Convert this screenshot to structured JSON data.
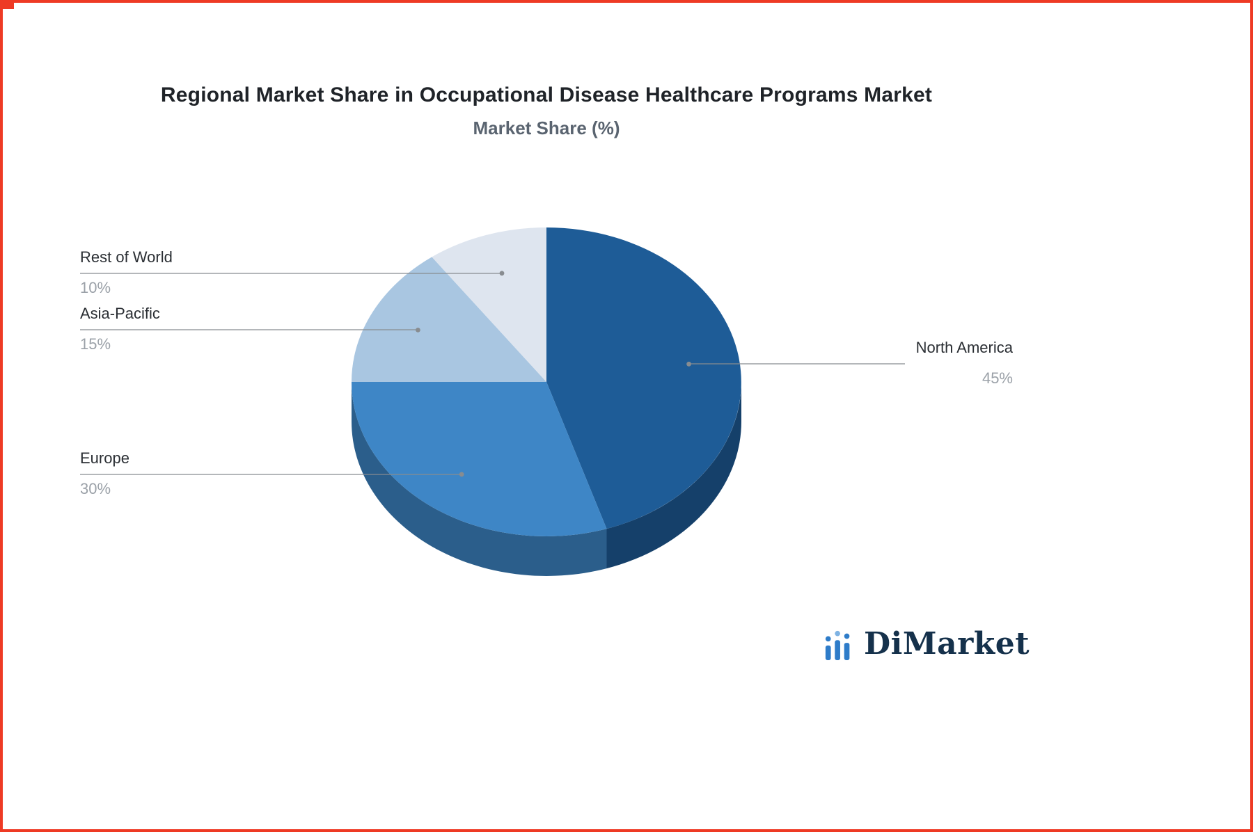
{
  "page": {
    "title": "Regional Market Share in Occupational Disease Healthcare Programs Market",
    "subtitle": "Market Share (%)"
  },
  "brand": {
    "name": "DiMarket",
    "icon": "bar-chart-logo-icon",
    "accent_color": "#2E7CC9",
    "text_color": "#15314B"
  },
  "frame_color": "#EE3A24",
  "chart_data": {
    "type": "pie",
    "title": "Regional Market Share in Occupational Disease Healthcare Programs Market",
    "subtitle": "Market Share (%)",
    "unit": "%",
    "total": 100,
    "start_angle_deg": 0,
    "direction": "clockwise",
    "effect_3d": true,
    "legend_position": "callout-labels",
    "slices": [
      {
        "label": "North America",
        "value": 45,
        "display": "45%",
        "color": "#1E5C97",
        "callout_side": "right"
      },
      {
        "label": "Europe",
        "value": 30,
        "display": "30%",
        "color": "#3E86C6",
        "callout_side": "left"
      },
      {
        "label": "Asia-Pacific",
        "value": 15,
        "display": "15%",
        "color": "#A9C6E1",
        "callout_side": "left"
      },
      {
        "label": "Rest of World",
        "value": 10,
        "display": "10%",
        "color": "#DEE5EF",
        "callout_side": "left"
      }
    ],
    "colors": {
      "leader_line": "#888C90",
      "label_text": "#2A2E33",
      "value_text": "#9BA1A8"
    }
  }
}
